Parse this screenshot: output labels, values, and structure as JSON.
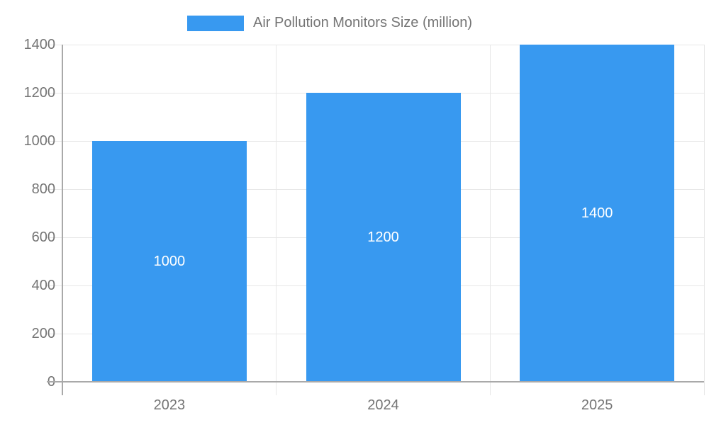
{
  "legend": {
    "label": "Air Pollution Monitors Size (million)"
  },
  "colors": {
    "bar": "#3899f0",
    "grid": "#e7e7e7",
    "axis": "#a9a9a9",
    "tick_text": "#757575",
    "value_label_text": "#ffffff",
    "background": "#ffffff"
  },
  "chart_data": {
    "type": "bar",
    "title": "",
    "xlabel": "",
    "ylabel": "",
    "categories": [
      "2023",
      "2024",
      "2025"
    ],
    "values": [
      1000,
      1200,
      1400
    ],
    "bar_labels": [
      "1000",
      "1200",
      "1400"
    ],
    "series": [
      {
        "name": "Air Pollution Monitors Size (million)",
        "values": [
          1000,
          1200,
          1400
        ]
      }
    ],
    "ylim": [
      0,
      1400
    ],
    "yticks": [
      0,
      200,
      400,
      600,
      800,
      1000,
      1200,
      1400
    ],
    "grid": true,
    "legend_position": "top-center",
    "value_labels_inside_bars": true
  }
}
